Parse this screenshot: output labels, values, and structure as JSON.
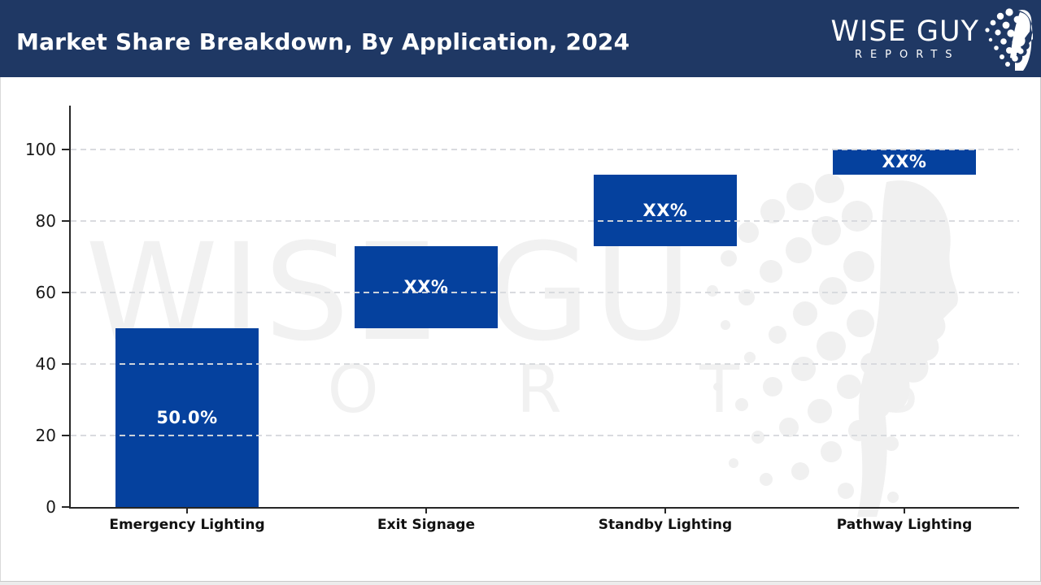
{
  "header": {
    "title": "Market Share Breakdown, By Application, 2024",
    "logo": {
      "brand_line1": "WISE GUY",
      "brand_line2": "REPORTS"
    }
  },
  "watermark": {
    "line1": "WISE GU",
    "line2": "P O R T S"
  },
  "chart_data": {
    "type": "waterfall",
    "title": "Market Share Breakdown, By Application, 2024",
    "categories": [
      "Emergency Lighting",
      "Exit Signage",
      "Standby Lighting",
      "Pathway Lighting"
    ],
    "segments": [
      {
        "category": "Emergency Lighting",
        "start": 0,
        "end": 50,
        "label": "50.0%"
      },
      {
        "category": "Exit Signage",
        "start": 50,
        "end": 73,
        "label": "XX%"
      },
      {
        "category": "Standby Lighting",
        "start": 73,
        "end": 93,
        "label": "XX%"
      },
      {
        "category": "Pathway Lighting",
        "start": 93,
        "end": 100,
        "label": "XX%"
      }
    ],
    "yticks": [
      0,
      20,
      40,
      60,
      80,
      100
    ],
    "ylim": [
      0,
      112.5
    ],
    "xlabel": "",
    "ylabel": "",
    "grid": "horizontal-dashed",
    "legend": "none",
    "bar_color": "#05419e",
    "value_label_color": "#ffffff"
  },
  "colors": {
    "header_bg": "#1f3864",
    "bar": "#05419e",
    "grid": "#d7d9dd",
    "axis": "#262626",
    "watermark": "#f1f1f1",
    "text_on_header": "#ffffff"
  }
}
